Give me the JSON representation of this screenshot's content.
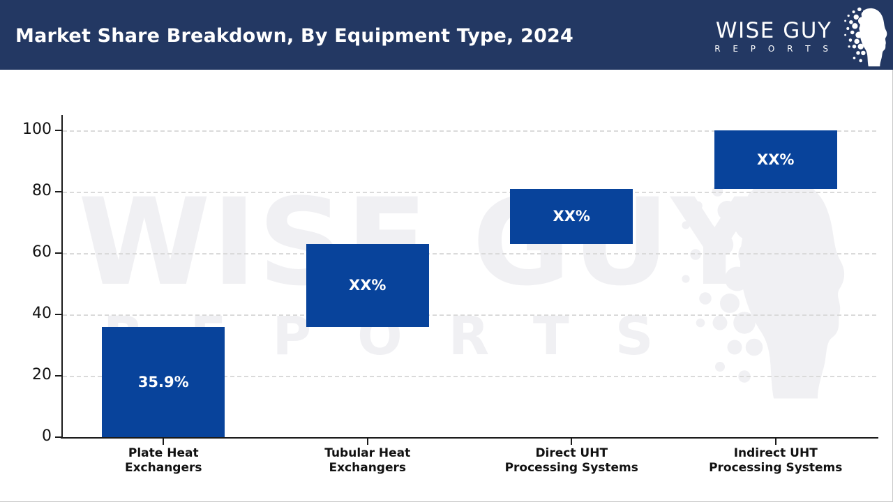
{
  "header": {
    "title": "Market Share Breakdown, By Equipment Type, 2024",
    "logo": {
      "line1": "WISE GUY",
      "line2": "R E P O R T S"
    }
  },
  "watermark": {
    "line1": "WISE GUY",
    "line2": "REPORTS"
  },
  "colors": {
    "header_background": "#233863",
    "bar_fill": "#08439b",
    "bar_label": "#ffffff",
    "gridline": "#dadada",
    "axis": "#1a1a1a",
    "watermark": "#f0f0f3"
  },
  "chart_data": {
    "type": "bar",
    "subtype": "waterfall",
    "title": "Market Share Breakdown, By Equipment Type, 2024",
    "xlabel": "",
    "ylabel": "",
    "ylim": [
      0,
      100
    ],
    "yticks": [
      0,
      20,
      40,
      60,
      80,
      100
    ],
    "grid": "horizontal-dashed",
    "legend": "none",
    "categories": [
      "Plate Heat Exchangers",
      "Tubular Heat Exchangers",
      "Direct UHT Processing Systems",
      "Indirect UHT Processing Systems"
    ],
    "segments": [
      {
        "category_lines": [
          "Plate Heat",
          "Exchangers"
        ],
        "start": 0,
        "end": 35.9,
        "value": 35.9,
        "label": "35.9%"
      },
      {
        "category_lines": [
          "Tubular Heat",
          "Exchangers"
        ],
        "start": 35.9,
        "end": 63.0,
        "value": 27.1,
        "label": "XX%"
      },
      {
        "category_lines": [
          "Direct UHT",
          "Processing Systems"
        ],
        "start": 63.0,
        "end": 81.0,
        "value": 18.0,
        "label": "XX%"
      },
      {
        "category_lines": [
          "Indirect UHT",
          "Processing Systems"
        ],
        "start": 81.0,
        "end": 100.0,
        "value": 19.0,
        "label": "XX%"
      }
    ]
  }
}
